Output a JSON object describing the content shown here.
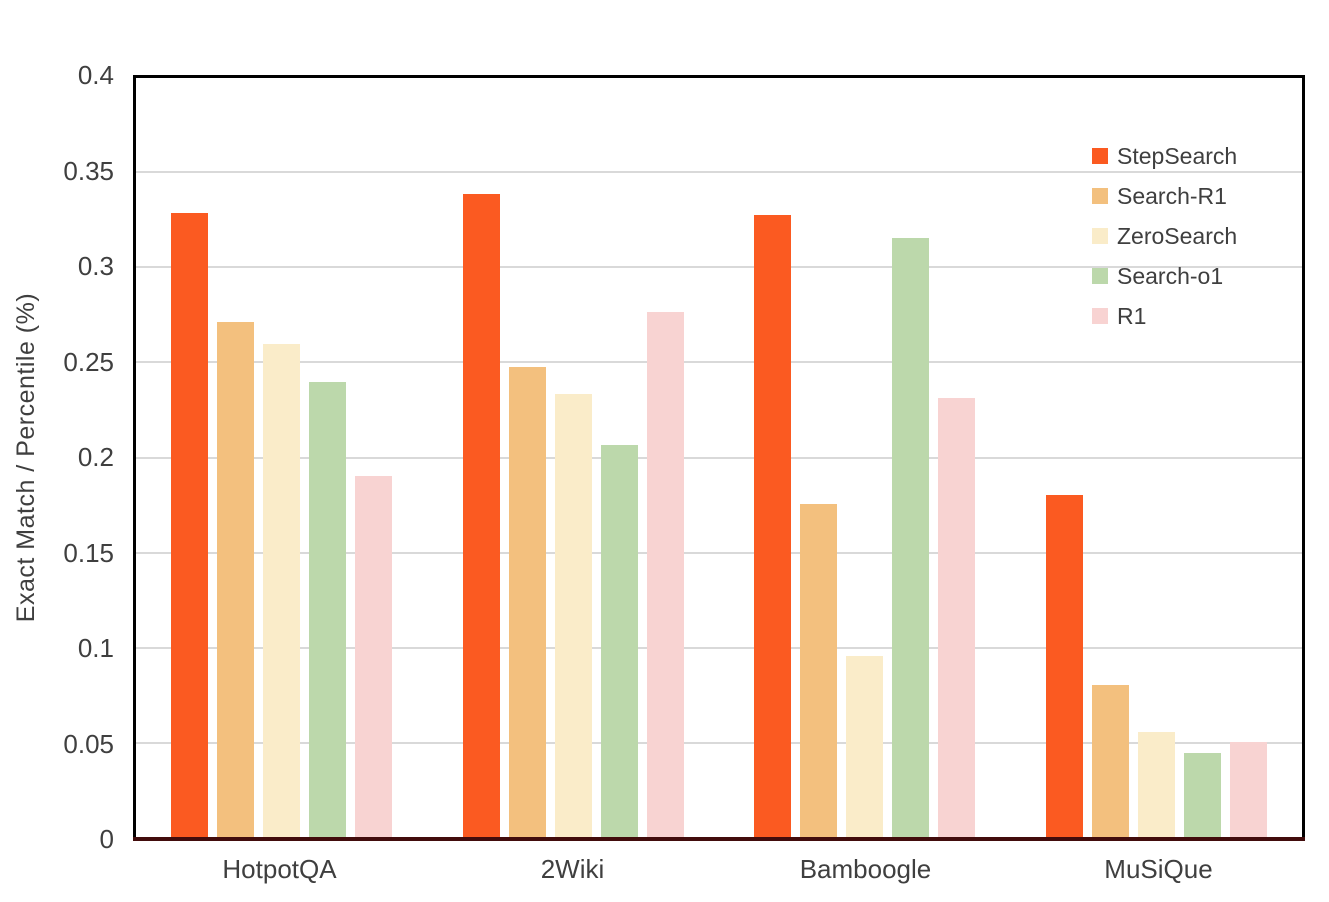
{
  "chart_data": {
    "type": "bar",
    "title": "",
    "xlabel": "",
    "ylabel": "Exact Match / Percentile (%)",
    "ylim": [
      0,
      0.4
    ],
    "yticks": [
      0,
      0.05,
      0.1,
      0.15,
      0.2,
      0.25,
      0.3,
      0.35,
      0.4
    ],
    "ytick_labels": [
      "0",
      "0.05",
      "0.1",
      "0.15",
      "0.2",
      "0.25",
      "0.3",
      "0.35",
      "0.4"
    ],
    "categories": [
      "HotpotQA",
      "2Wiki",
      "Bamboogle",
      "MuSiQue"
    ],
    "series": [
      {
        "name": "StepSearch",
        "color": "#FB5A21",
        "values": [
          0.329,
          0.339,
          0.328,
          0.181
        ]
      },
      {
        "name": "Search-R1",
        "color": "#F3C07E",
        "values": [
          0.272,
          0.248,
          0.176,
          0.081
        ]
      },
      {
        "name": "ZeroSearch",
        "color": "#FAECC9",
        "values": [
          0.26,
          0.234,
          0.096,
          0.056
        ]
      },
      {
        "name": "Search-o1",
        "color": "#BCD8AB",
        "values": [
          0.24,
          0.207,
          0.316,
          0.045
        ]
      },
      {
        "name": "R1",
        "color": "#F8D3D2",
        "values": [
          0.191,
          0.277,
          0.232,
          0.051
        ]
      }
    ],
    "grid": "horizontal",
    "legend_position": "inside-top-right",
    "colors": {
      "gridline": "#D9D9D9",
      "axis_border": "#000000",
      "baseline": "#420C0C",
      "text": "#3F3F3F",
      "background": "#FFFFFF"
    }
  }
}
